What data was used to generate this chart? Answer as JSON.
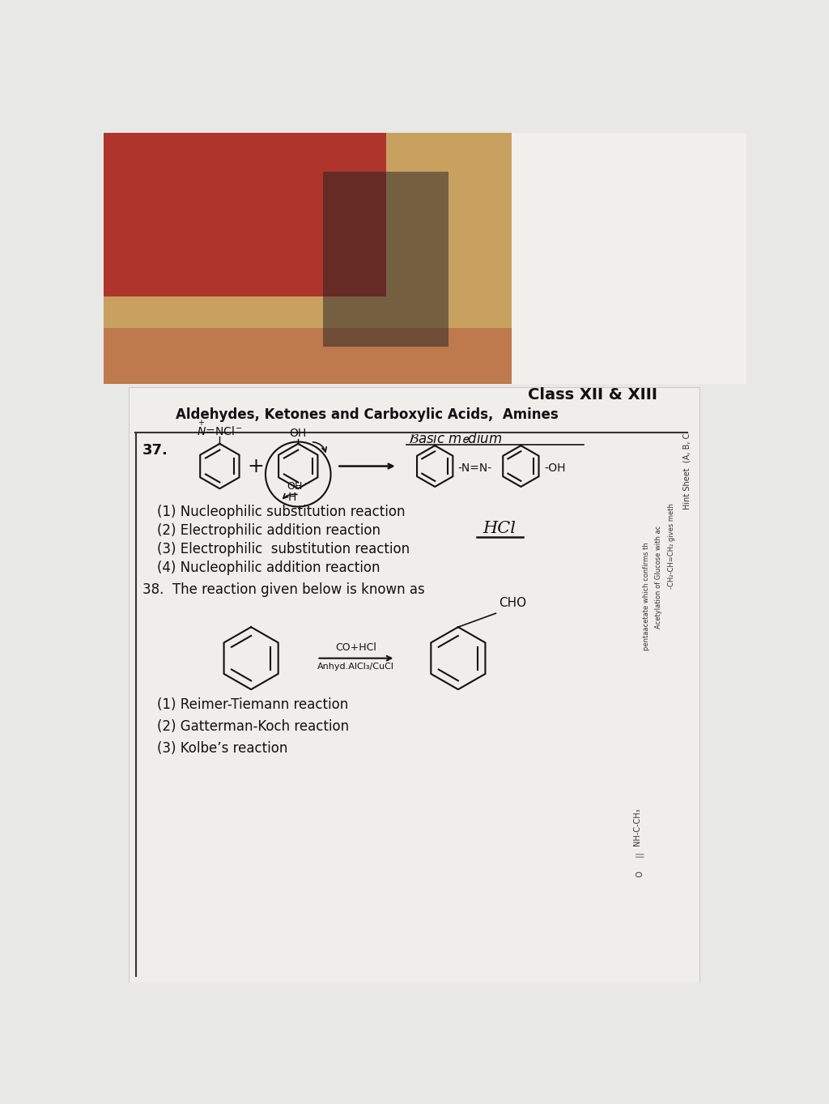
{
  "title_right": "Class XII & XIII",
  "title_left": "Aldehydes, Ketones and Carboxylic Acids,  Amines",
  "q37_label": "37.",
  "q37_options": [
    "(1) Nucleophilic substitution reaction",
    "(2) Electrophilic addition reaction",
    "(3) Electrophilic  substitution reaction",
    "(4) Nucleophilic addition reaction"
  ],
  "q38_stem": "38.  The reaction given below is known as",
  "q38_options": [
    "(1) Reimer-Tiemann reaction",
    "(2) Gatterman-Koch reaction",
    "(3) Kolbe’s reaction"
  ],
  "hcl_label": "HCl",
  "reaction_label": "CO+HCl",
  "catalyst_label": "Anhyd.AlCl₃/CuCl",
  "cho_label": "CHO",
  "carpet_color": "#c8a060",
  "red_color": "#aa2222",
  "paper_color": "#f2f0ec",
  "content_bg": "#e8e8e6",
  "text_color": "#111111"
}
